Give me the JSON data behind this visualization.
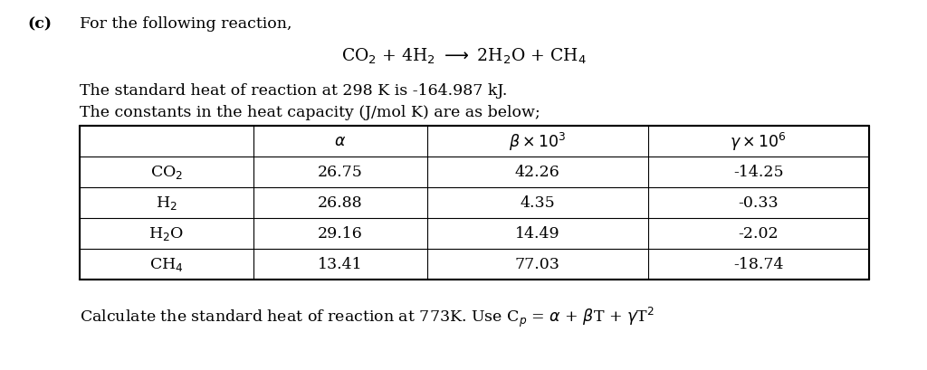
{
  "bg_color": "#ffffff",
  "text_color": "#000000",
  "label_c": "(c)",
  "line1": "For the following reaction,",
  "reaction_parts": {
    "text": "CO$_2$ + 4H$_2$ → 2H$_2$O + CH$_4$",
    "arrow": "⟶"
  },
  "line3": "The standard heat of reaction at 298 K is -164.987 kJ.",
  "line4": "The constants in the heat capacity (J/mol K) are as below;",
  "col_headers_math": [
    "$\\alpha$",
    "$\\beta\\times 10^3$",
    "$\\gamma\\times 10^6$"
  ],
  "row_labels": [
    "CO$_2$",
    "H$_2$",
    "H$_2$O",
    "CH$_4$"
  ],
  "table_data": [
    [
      "26.75",
      "42.26",
      "-14.25"
    ],
    [
      "26.88",
      "4.35",
      "-0.33"
    ],
    [
      "29.16",
      "14.49",
      "-2.02"
    ],
    [
      "13.41",
      "77.03",
      "-18.74"
    ]
  ],
  "footer": "Calculate the standard heat of reaction at 773K. Use C$_p$ = $\\alpha$ + $\\beta$T + $\\gamma$T$^2$",
  "font_size": 12.5,
  "reaction_font_size": 13.5
}
